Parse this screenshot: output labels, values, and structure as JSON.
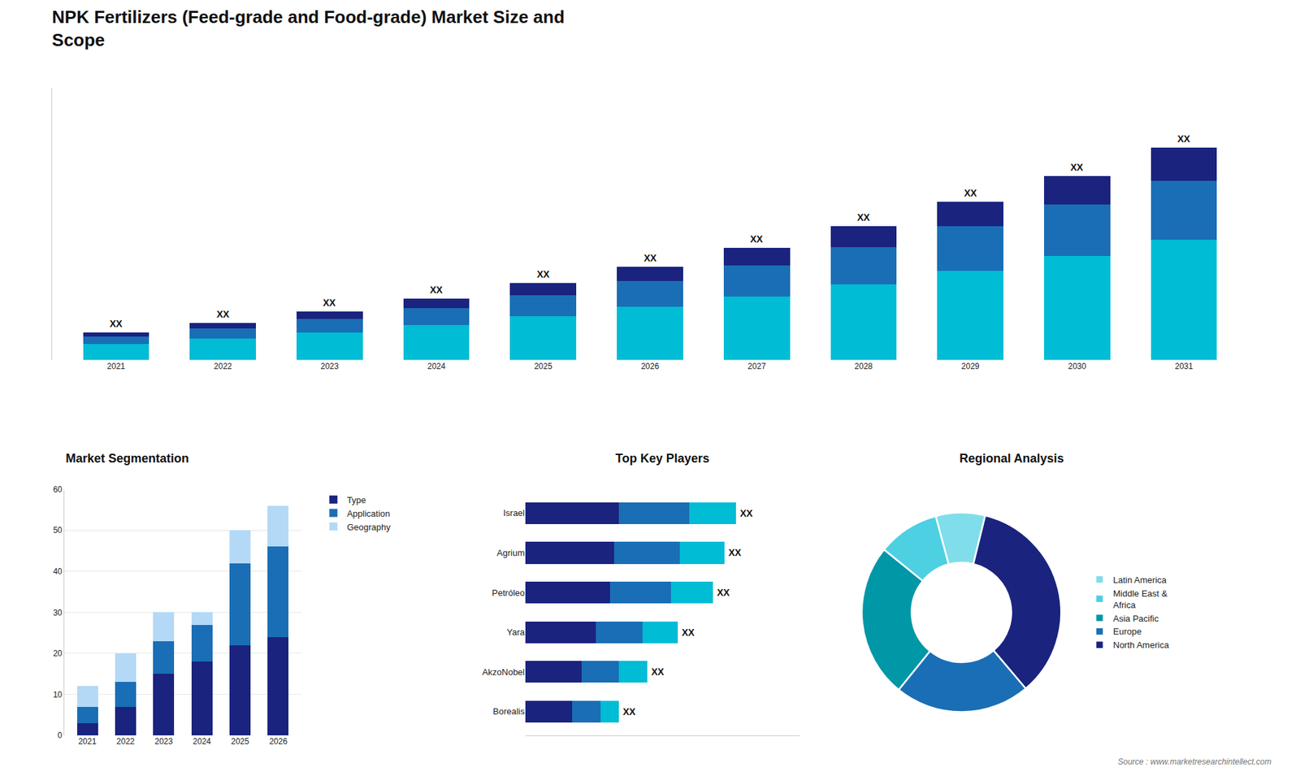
{
  "chart_data": [
    {
      "type": "bar",
      "stacked": true,
      "title": "NPK Fertilizers (Feed-grade and Food-grade) Market Size and\nScope",
      "categories": [
        "2021",
        "2022",
        "2023",
        "2024",
        "2025",
        "2026",
        "2027",
        "2028",
        "2029",
        "2030",
        "2031"
      ],
      "series": [
        {
          "color": "#00bcd4",
          "values": [
            1.0,
            1.35,
            1.75,
            2.2,
            2.75,
            3.35,
            4.0,
            4.8,
            5.65,
            6.6,
            7.6
          ]
        },
        {
          "color": "#1a6eb5",
          "values": [
            0.5,
            0.65,
            0.85,
            1.1,
            1.35,
            1.65,
            2.0,
            2.35,
            2.8,
            3.25,
            3.75
          ]
        },
        {
          "color": "#1a237e",
          "values": [
            0.25,
            0.35,
            0.45,
            0.6,
            0.75,
            0.9,
            1.1,
            1.3,
            1.55,
            1.8,
            2.1
          ]
        }
      ],
      "ylim": [
        0,
        17.216
      ],
      "yticks": [],
      "tick_labels": "x",
      "grid": false,
      "annotations": [
        {
          "x": "2021",
          "text": "XX"
        },
        {
          "x": "2022",
          "text": "XX"
        },
        {
          "x": "2023",
          "text": "XX"
        },
        {
          "x": "2024",
          "text": "XX"
        },
        {
          "x": "2025",
          "text": "XX"
        },
        {
          "x": "2026",
          "text": "XX"
        },
        {
          "x": "2027",
          "text": "XX"
        },
        {
          "x": "2028",
          "text": "XX"
        },
        {
          "x": "2029",
          "text": "XX"
        },
        {
          "x": "2030",
          "text": "XX"
        },
        {
          "x": "2031",
          "text": "XX"
        }
      ]
    },
    {
      "type": "bar",
      "stacked": true,
      "title": "Market Segmentation",
      "categories": [
        "2021",
        "2022",
        "2023",
        "2024",
        "2025",
        "2026"
      ],
      "series": [
        {
          "name": "Type",
          "color": "#1a237e",
          "values": [
            3,
            7,
            15,
            18,
            22,
            24
          ]
        },
        {
          "name": "Application",
          "color": "#1a6eb5",
          "values": [
            4,
            6,
            8,
            9,
            20,
            22
          ]
        },
        {
          "name": "Geography",
          "color": "#b3d9f7",
          "values": [
            5,
            7,
            7,
            3,
            8,
            10
          ]
        }
      ],
      "ylim": [
        0,
        60
      ],
      "yticks": [
        0,
        10,
        20,
        30,
        40,
        50,
        60
      ],
      "grid": true,
      "legend": "right"
    },
    {
      "type": "bar",
      "stacked": true,
      "orientation": "horizontal",
      "title": "Top Key Players",
      "categories": [
        "Israel",
        "Agrium",
        "Petróleo",
        "Yara",
        "AkzoNobel",
        "Borealis"
      ],
      "series": [
        {
          "color": "#1a237e",
          "values": [
            4.0,
            3.8,
            3.6,
            3.0,
            2.4,
            2.0
          ]
        },
        {
          "color": "#1a6eb5",
          "values": [
            3.0,
            2.8,
            2.6,
            2.0,
            1.6,
            1.2
          ]
        },
        {
          "color": "#00bcd4",
          "values": [
            2.0,
            1.9,
            1.8,
            1.5,
            1.2,
            0.8
          ]
        }
      ],
      "xlim": [
        0,
        11.7
      ],
      "xticks": [],
      "tick_labels": "y",
      "grid": false,
      "annotations": [
        {
          "y": "Israel",
          "text": "XX"
        },
        {
          "y": "Agrium",
          "text": "XX"
        },
        {
          "y": "Petróleo",
          "text": "XX"
        },
        {
          "y": "Yara",
          "text": "XX"
        },
        {
          "y": "AkzoNobel",
          "text": "XX"
        },
        {
          "y": "Borealis",
          "text": "XX"
        }
      ]
    },
    {
      "type": "pie",
      "title": "Regional Analysis",
      "categories": [
        "Latin America",
        "Middle East &\nAfrica",
        "Asia Pacific",
        "Europe",
        "North America"
      ],
      "values": [
        8,
        10,
        25,
        22,
        35
      ],
      "colors": [
        "#80deea",
        "#4dd0e1",
        "#0097a7",
        "#1a6eb5",
        "#1a237e"
      ],
      "legend": "right",
      "data_labels": false,
      "annotations": [
        {
          "text": "Source : www.marketresearchintellect.com"
        }
      ]
    }
  ]
}
